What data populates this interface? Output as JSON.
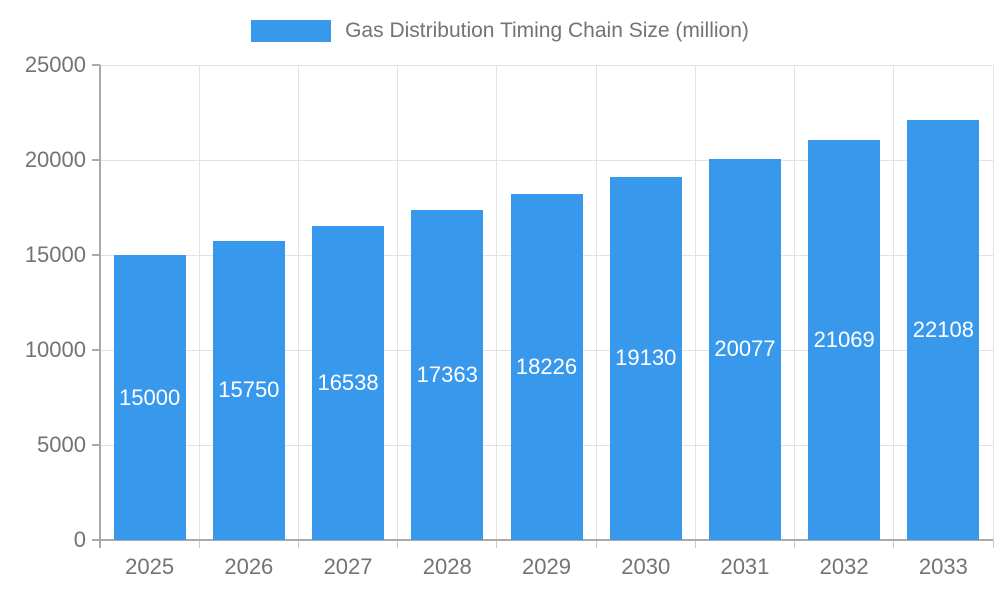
{
  "chart_data": {
    "type": "bar",
    "title": "Gas Distribution Timing Chain Size (million)",
    "categories": [
      "2025",
      "2026",
      "2027",
      "2028",
      "2029",
      "2030",
      "2031",
      "2032",
      "2033"
    ],
    "values": [
      15000,
      15750,
      16538,
      17363,
      18226,
      19130,
      20077,
      21069,
      22108
    ],
    "xlabel": "",
    "ylabel": "",
    "ylim": [
      0,
      25000
    ],
    "yticks": [
      0,
      5000,
      10000,
      15000,
      20000,
      25000
    ],
    "grid": true,
    "legend_position": "top-center",
    "value_labels": "inside-center",
    "style": {
      "bar_color": "#3899EC",
      "grid_color": "#E3E3E3",
      "axis_color": "#AAAAAA",
      "tick_color": "#C9C9C9",
      "label_color": "#737373",
      "value_label_color": "#FFFFFF",
      "background": "#FFFFFF"
    }
  }
}
